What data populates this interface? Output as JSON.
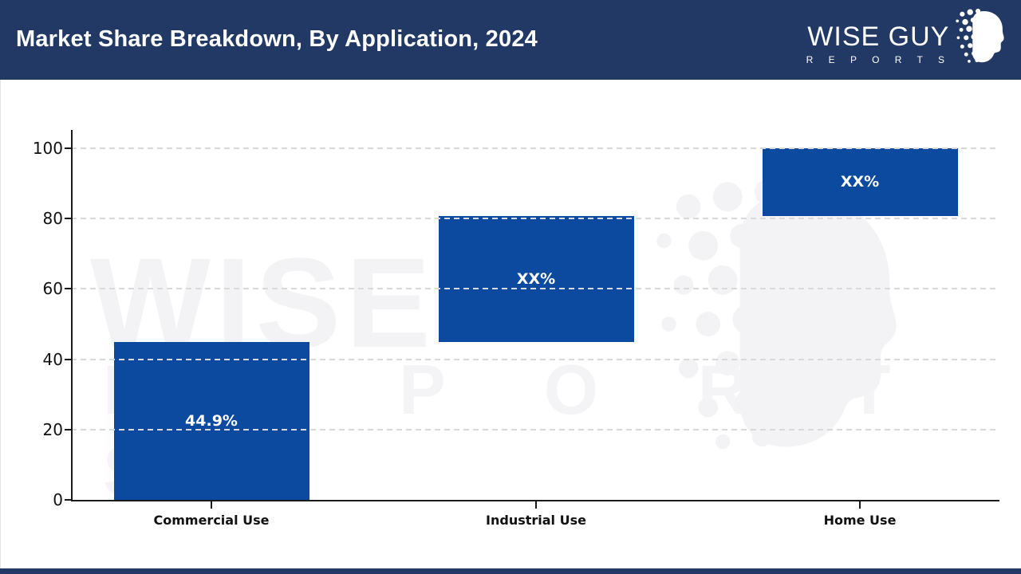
{
  "header": {
    "title": "Market Share Breakdown, By Application, 2024",
    "logo": {
      "line1": "WISE GUY",
      "line2": "R E P O R T S"
    }
  },
  "watermark": {
    "line1": "WISE",
    "line2": "R E P O R T S"
  },
  "colors": {
    "header_bg": "#213964",
    "footer_bg": "#213964",
    "bar": "#0b4a9e",
    "bar_label": "#ffffff",
    "gridline": "#d9d9d9",
    "axis": "#1a1a1a",
    "watermark": "#f3f3f6"
  },
  "chart_data": {
    "type": "bar",
    "subtype": "waterfall",
    "title": "Market Share Breakdown, By Application, 2024",
    "categories": [
      "Commercial Use",
      "Industrial Use",
      "Home Use"
    ],
    "series": [
      {
        "name": "Market Share",
        "segments": [
          {
            "category": "Commercial Use",
            "start": 0,
            "end": 44.9,
            "label": "44.9%"
          },
          {
            "category": "Industrial Use",
            "start": 44.9,
            "end": 80.8,
            "label": "XX%"
          },
          {
            "category": "Home Use",
            "start": 80.8,
            "end": 100,
            "label": "XX%"
          }
        ]
      }
    ],
    "ylim": [
      0,
      100
    ],
    "yticks": [
      0,
      20,
      40,
      60,
      80,
      100
    ],
    "grid": "horizontal-dashed",
    "legend": "none",
    "xlabel": "",
    "ylabel": ""
  }
}
